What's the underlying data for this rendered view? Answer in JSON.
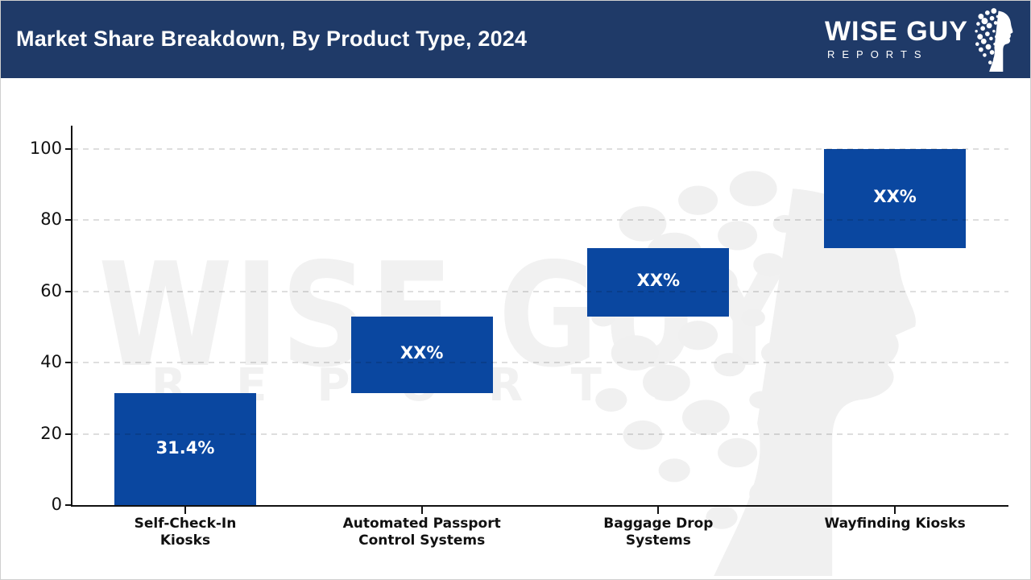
{
  "header": {
    "title": "Market Share Breakdown, By Product Type, 2024",
    "bg_color": "#1f3a68",
    "text_color": "#ffffff",
    "logo": {
      "line1": "WISE GUY",
      "line2": "REPORTS"
    }
  },
  "watermark": {
    "line1": "WISE GUY",
    "line2": "REPORTS"
  },
  "chart_data": {
    "type": "bar",
    "subtype": "waterfall",
    "title": "Market Share Breakdown, By Product Type, 2024",
    "categories": [
      "Self-Check-In\nKiosks",
      "Automated Passport\nControl Systems",
      "Baggage Drop\nSystems",
      "Wayfinding Kiosks"
    ],
    "segments": [
      {
        "category": "Self-Check-In Kiosks",
        "start": 0,
        "end": 31.4,
        "label": "31.4%"
      },
      {
        "category": "Automated Passport Control Systems",
        "start": 31.4,
        "end": 53,
        "label": "XX%"
      },
      {
        "category": "Baggage Drop Systems",
        "start": 53,
        "end": 72.2,
        "label": "XX%"
      },
      {
        "category": "Wayfinding Kiosks",
        "start": 72.2,
        "end": 100,
        "label": "XX%"
      }
    ],
    "bar_color": "#0a47a0",
    "label_color": "#ffffff",
    "xlabel": "",
    "ylabel": "",
    "ylim": [
      0,
      100
    ],
    "yticks": [
      0,
      20,
      40,
      60,
      80,
      100
    ],
    "grid": "horizontal-dashed",
    "legend": "none"
  }
}
